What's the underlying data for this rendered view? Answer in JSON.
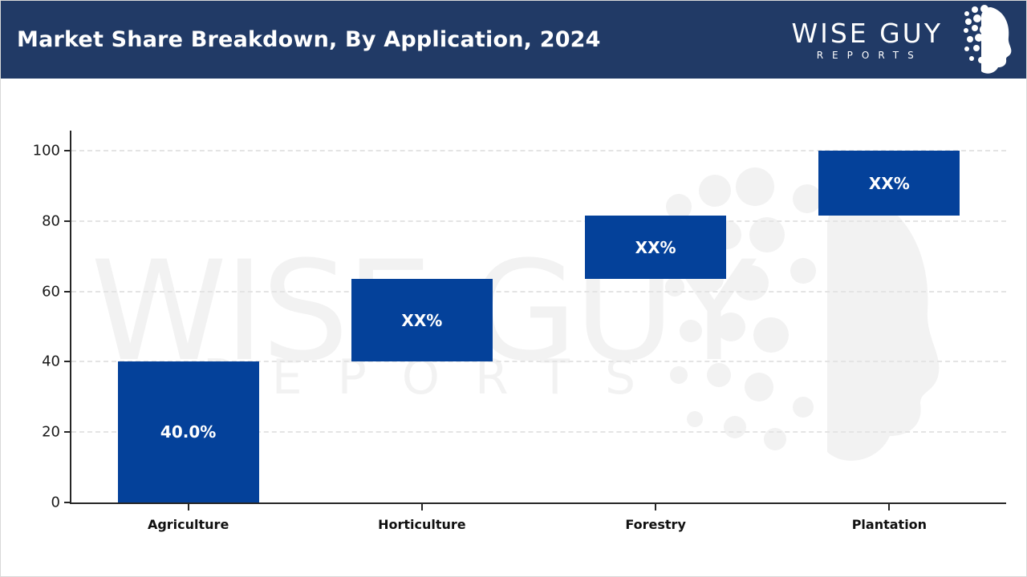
{
  "header": {
    "title": "Market Share Breakdown, By Application, 2024",
    "brand": {
      "line1": "WISE GUY",
      "line2": "REPORTS"
    }
  },
  "watermark": {
    "line1": "WISE GUY",
    "line2": "REPORTS"
  },
  "colors": {
    "header_bg": "#213a66",
    "bar": "#04419a",
    "axis": "#262626",
    "grid": "#e4e4e4",
    "watermark": "#f2f2f2",
    "bar_label": "#ffffff",
    "title_text": "#ffffff"
  },
  "chart_data": {
    "type": "bar",
    "subtype": "waterfall",
    "title": "Market Share Breakdown, By Application, 2024",
    "categories": [
      "Agriculture",
      "Horticulture",
      "Forestry",
      "Plantation"
    ],
    "bars": [
      {
        "category": "Agriculture",
        "start": 0,
        "end": 40,
        "value": 40.0,
        "label": "40.0%"
      },
      {
        "category": "Horticulture",
        "start": 40,
        "end": 63.5,
        "value": 23.5,
        "label": "XX%"
      },
      {
        "category": "Forestry",
        "start": 63.5,
        "end": 81.5,
        "value": 18.0,
        "label": "XX%"
      },
      {
        "category": "Plantation",
        "start": 81.5,
        "end": 100,
        "value": 18.5,
        "label": "XX%"
      }
    ],
    "xlabel": "",
    "ylabel": "",
    "yticks": [
      0,
      20,
      40,
      60,
      80,
      100
    ],
    "ylim": [
      0,
      105
    ],
    "grid": "horizontal-dashed",
    "legend": "none"
  }
}
